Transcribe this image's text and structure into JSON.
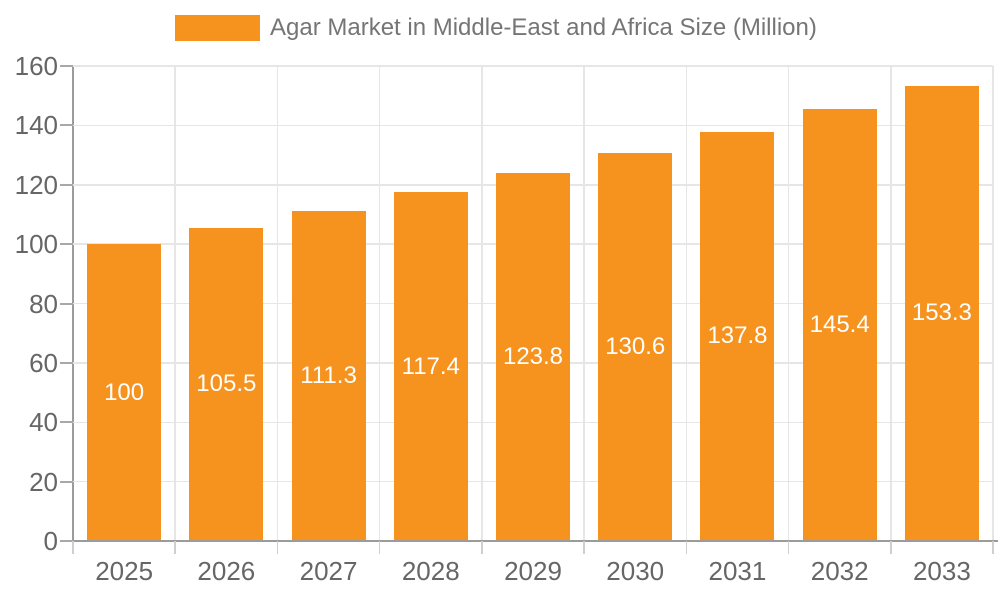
{
  "legend": {
    "label": "Agar Market in Middle-East and Africa Size (Million)",
    "position": "top"
  },
  "chart_data": {
    "type": "bar",
    "title": "Agar Market in Middle-East and Africa Size (Million)",
    "xlabel": "",
    "ylabel": "",
    "categories": [
      "2025",
      "2026",
      "2027",
      "2028",
      "2029",
      "2030",
      "2031",
      "2032",
      "2033"
    ],
    "series": [
      {
        "name": "Agar Market in Middle-East and Africa Size (Million)",
        "values": [
          100,
          105.5,
          111.3,
          117.4,
          123.8,
          130.6,
          137.8,
          145.4,
          153.3
        ]
      }
    ],
    "value_labels": [
      "100",
      "105.5",
      "111.3",
      "117.4",
      "123.8",
      "130.6",
      "137.8",
      "145.4",
      "153.3"
    ],
    "ylim": [
      0,
      160
    ],
    "ytick_step": 20,
    "ytick_labels": [
      "0",
      "20",
      "40",
      "60",
      "80",
      "100",
      "120",
      "140",
      "160"
    ],
    "grid": true,
    "legend_position": "top",
    "colors": {
      "bar": "#f6921e",
      "value_label": "#ffffff",
      "axis_text": "#666666",
      "legend_text": "#757575",
      "gridline": "#e6e6e6",
      "axis_line": "#9b9b9b"
    }
  }
}
